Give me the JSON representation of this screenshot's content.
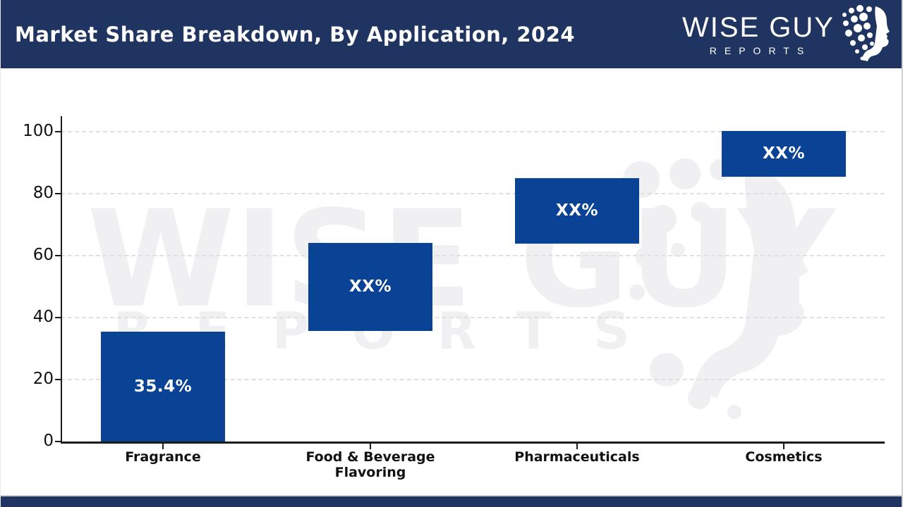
{
  "header": {
    "title": "Market Share Breakdown, By Application, 2024",
    "logo_line1": "WISE GUY",
    "logo_line2": "REPORTS",
    "bg_color": "#1f3460"
  },
  "watermark": {
    "line1": "WISE GUY",
    "line2": "REPORTS",
    "color": "#f0f0f2"
  },
  "chart_data": {
    "type": "bar",
    "subtype": "waterfall-floating-bars",
    "title": "Market Share Breakdown, By Application, 2024",
    "categories": [
      "Fragrance",
      "Food & Beverage Flavoring",
      "Pharmaceuticals",
      "Cosmetics"
    ],
    "category_label_lines": [
      [
        "Fragrance"
      ],
      [
        "Food & Beverage",
        "Flavoring"
      ],
      [
        "Pharmaceuticals"
      ],
      [
        "Cosmetics"
      ]
    ],
    "segments": [
      {
        "category": "Fragrance",
        "start": 0,
        "end": 35.4,
        "label": "35.4%"
      },
      {
        "category": "Food & Beverage Flavoring",
        "start": 35.7,
        "end": 64.1,
        "label": "XX%"
      },
      {
        "category": "Pharmaceuticals",
        "start": 63.9,
        "end": 85.0,
        "label": "XX%"
      },
      {
        "category": "Cosmetics",
        "start": 85.5,
        "end": 100.2,
        "label": "XX%"
      }
    ],
    "yticks": [
      0,
      20,
      40,
      60,
      80,
      100
    ],
    "ylim": [
      0,
      105
    ],
    "xlabel": "",
    "ylabel": "",
    "grid": true,
    "grid_style": "dashed",
    "legend": false,
    "bar_color": "#0a4296",
    "value_label_color": "#ffffff"
  }
}
